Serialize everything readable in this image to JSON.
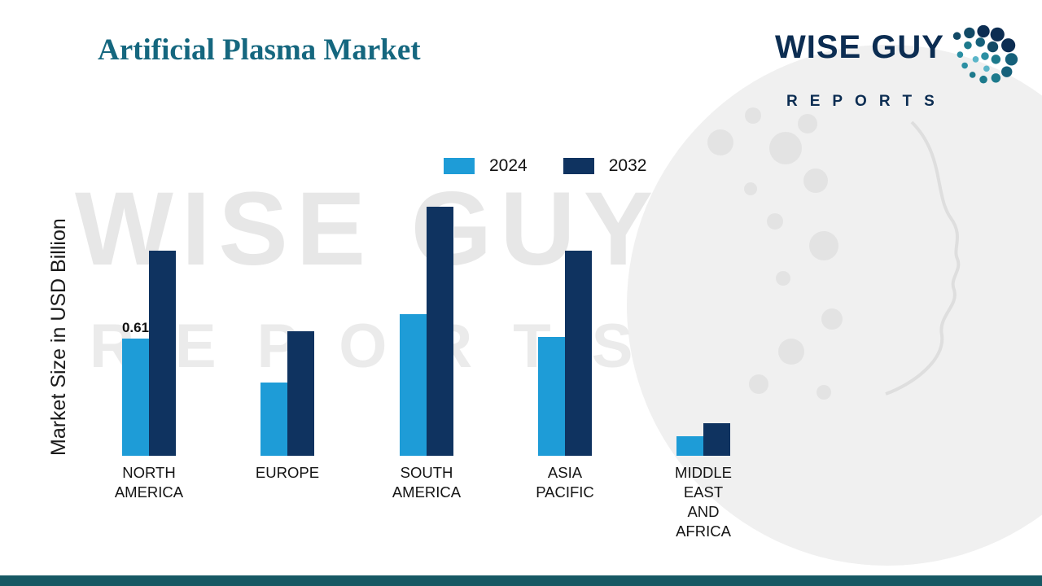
{
  "header": {
    "title": "Artificial Plasma Market"
  },
  "logo": {
    "brand": "WISE GUY",
    "sub": "REPORTS"
  },
  "watermark": {
    "line1": "WISE GUY",
    "line2": "REPORTS"
  },
  "colors": {
    "title": "#15677f",
    "series_2024": "#1e9cd7",
    "series_2032": "#0f3360",
    "logo_navy": "#0c2d52",
    "footer_bar": "#175964",
    "watermark_gray": "#e7e7e7"
  },
  "chart_data": {
    "type": "bar",
    "title": "Artificial Plasma Market",
    "xlabel": "",
    "ylabel": "Market Size in USD Billion",
    "ylim": [
      0,
      1.4
    ],
    "grid": false,
    "legend_position": "top",
    "categories": [
      "NORTH AMERICA",
      "EUROPE",
      "SOUTH AMERICA",
      "ASIA PACIFIC",
      "MIDDLE EAST AND AFRICA"
    ],
    "category_lines": [
      [
        "NORTH",
        "AMERICA"
      ],
      [
        "EUROPE"
      ],
      [
        "SOUTH",
        "AMERICA"
      ],
      [
        "ASIA",
        "PACIFIC"
      ],
      [
        "MIDDLE",
        "EAST",
        "AND",
        "AFRICA"
      ]
    ],
    "series": [
      {
        "name": "2024",
        "color": "#1e9cd7",
        "values": [
          0.61,
          0.38,
          0.74,
          0.62,
          0.1
        ]
      },
      {
        "name": "2032",
        "color": "#0f3360",
        "values": [
          1.07,
          0.65,
          1.3,
          1.07,
          0.17
        ]
      }
    ],
    "value_labels": [
      {
        "series_index": 0,
        "category_index": 0,
        "text": "0.61"
      }
    ]
  }
}
